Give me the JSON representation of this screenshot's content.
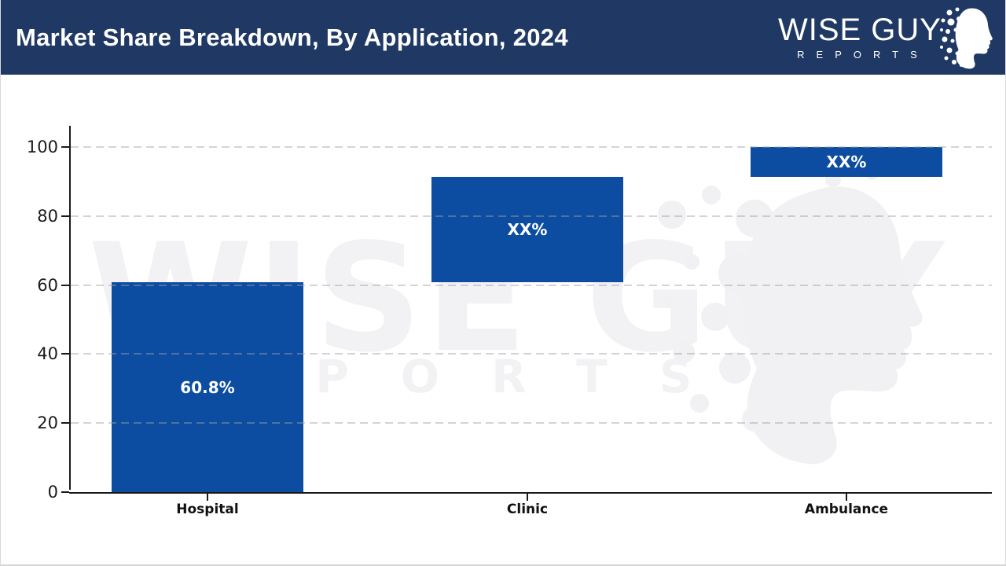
{
  "header": {
    "title": "Market Share Breakdown, By Application, 2024",
    "logo": {
      "brand": "WISE GUY",
      "sub": "REPORTS"
    }
  },
  "watermark": {
    "brand": "WISE GUY",
    "sub": "REPORTS"
  },
  "chart_data": {
    "type": "bar",
    "subtype": "floating-segment-breakdown",
    "title": "Market Share Breakdown, By Application, 2024",
    "categories": [
      "Hospital",
      "Clinic",
      "Ambulance"
    ],
    "segments": [
      {
        "category": "Hospital",
        "start": 0,
        "end": 60.8,
        "value": 60.8,
        "label": "60.8%"
      },
      {
        "category": "Clinic",
        "start": 60.8,
        "end": 91.3,
        "value": 30.5,
        "label": "XX%"
      },
      {
        "category": "Ambulance",
        "start": 91.3,
        "end": 100,
        "value": 8.7,
        "label": "XX%"
      }
    ],
    "ylim": [
      0,
      100
    ],
    "yticks": [
      0,
      20,
      40,
      60,
      80,
      100
    ],
    "xlabel": "",
    "ylabel": "",
    "grid": "horizontal-dashed",
    "legend": "none",
    "bar_color": "#0d4da1",
    "bar_label_color": "#ffffff"
  },
  "colors": {
    "header_bg": "#1f3864",
    "bar": "#0d4da1",
    "axis": "#1a1a1a",
    "gridline": "#d9d9d9",
    "watermark": "#f2f2f5",
    "frame_border": "#d6d6d6"
  }
}
